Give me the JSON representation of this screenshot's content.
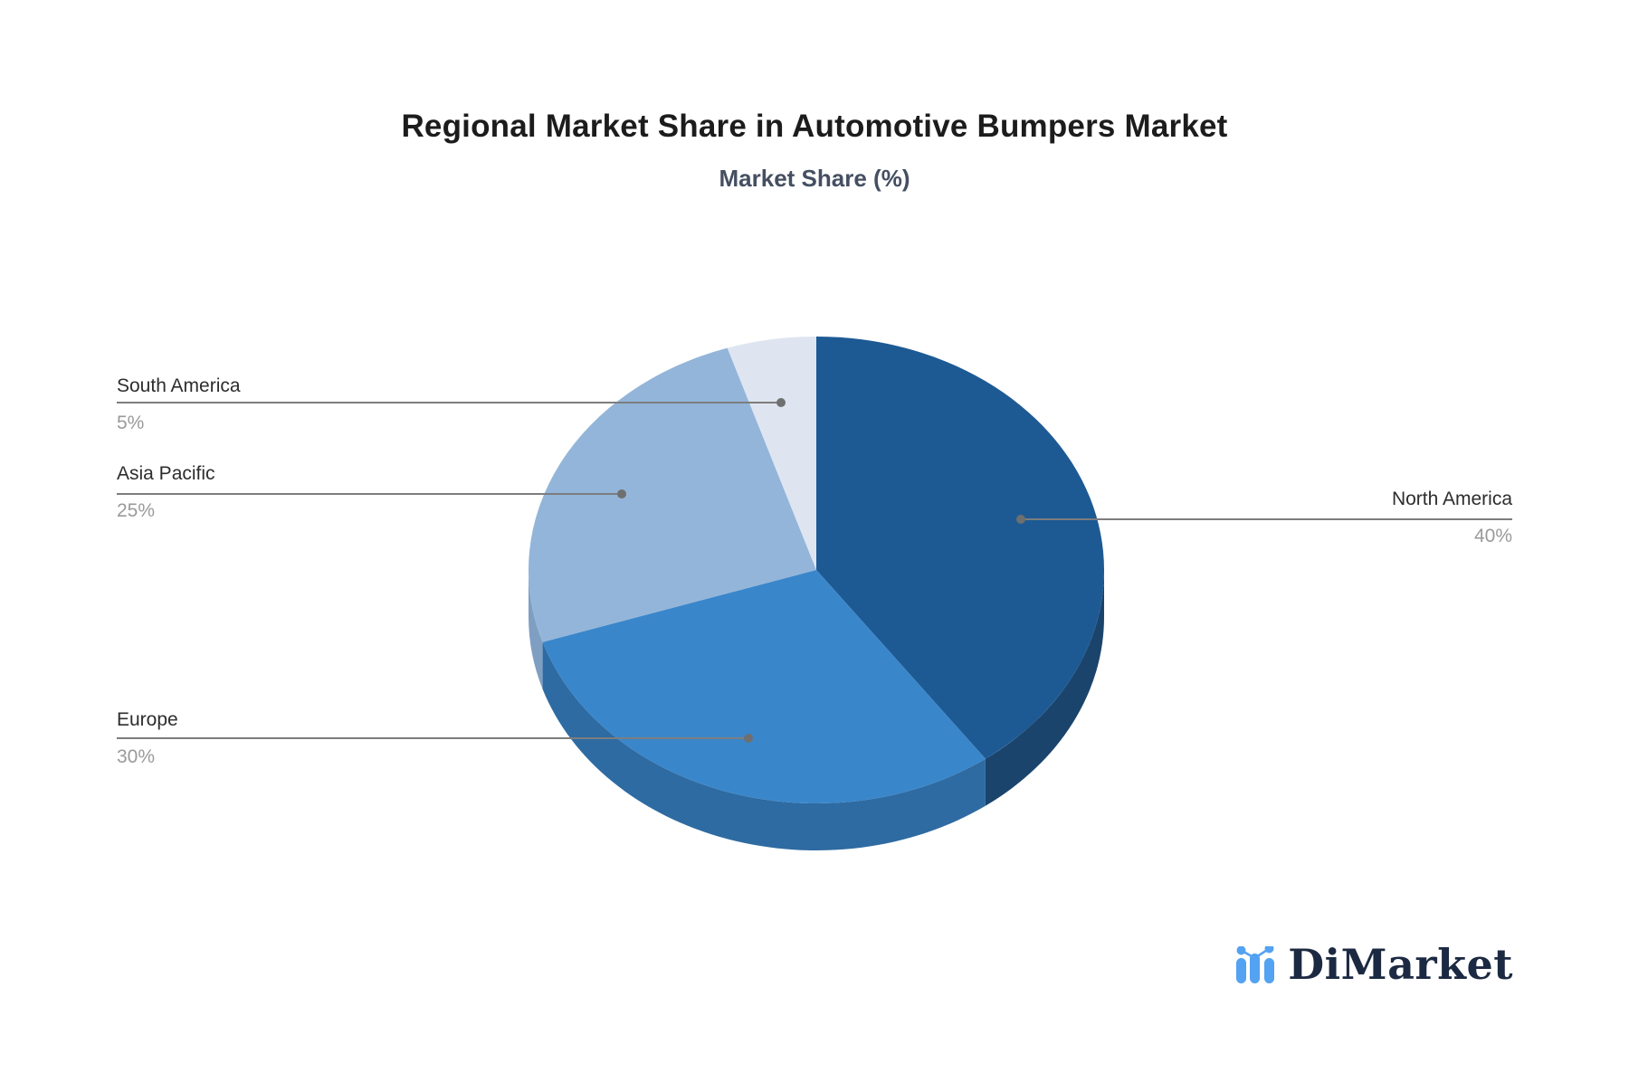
{
  "chart_data": {
    "type": "pie",
    "title": "Regional Market Share in Automotive Bumpers Market",
    "subtitle": "Market Share (%)",
    "unit": "%",
    "categories": [
      "North America",
      "Europe",
      "Asia Pacific",
      "South America"
    ],
    "values": [
      40,
      30,
      25,
      5
    ],
    "percent_labels": [
      "40%",
      "30%",
      "25%",
      "5%"
    ],
    "colors": [
      "#1d5a94",
      "#3a86ca",
      "#93b5d9",
      "#dfe5f0"
    ],
    "side_colors": [
      "#1a446c",
      "#2e6ba2",
      "#7f9fc2",
      "#c9d2e2"
    ],
    "start_angle_deg": 0,
    "direction": "clockwise",
    "label_position": "outside-callout",
    "effect_3d": true,
    "legend": "none"
  },
  "style_colors": {
    "background": "#ffffff",
    "title": "#1c1c1c",
    "subtitle": "#454f61",
    "label": "#2d2d2d",
    "value": "#9a9a9a",
    "leader_line": "#7d7d7d",
    "leader_dot": "#6f6f6f",
    "logo_text": "#1c2942",
    "logo_icon": "#54a2f2"
  },
  "branding": {
    "logo_text": "DiMarket"
  }
}
